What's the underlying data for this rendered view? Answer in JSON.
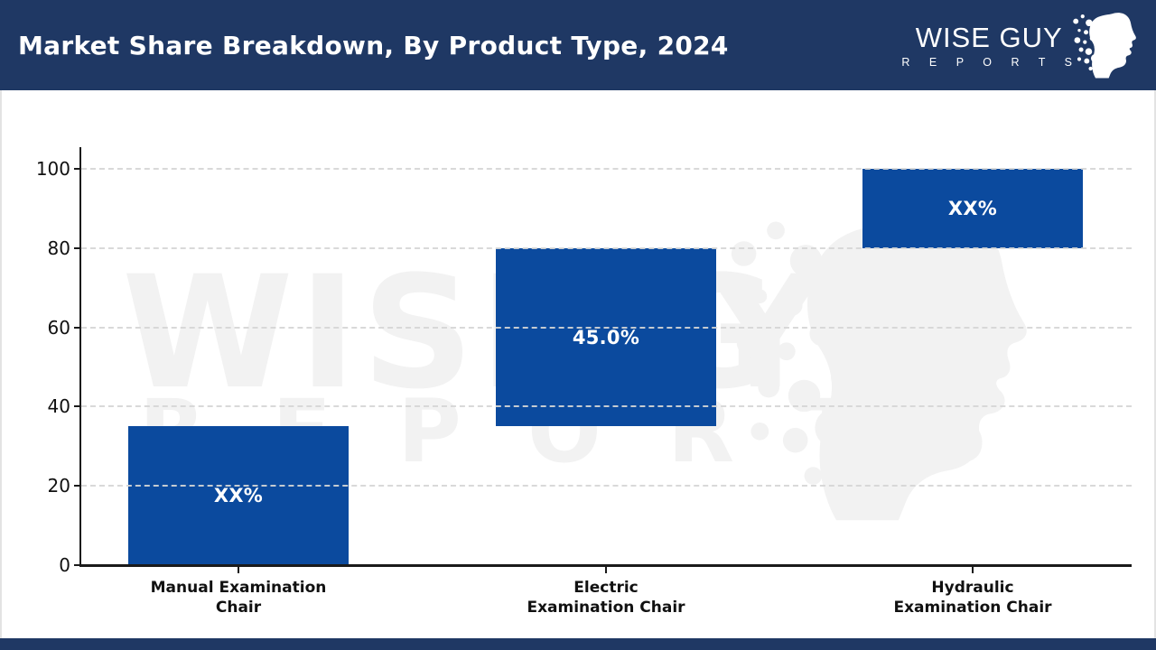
{
  "header": {
    "title": "Market Share Breakdown, By Product Type, 2024",
    "logo": {
      "line1": "WISE GUY",
      "line2": "R E P O R T S"
    }
  },
  "watermark": {
    "line1": "WISE G",
    "letter_y": "Y",
    "line2": "R E P O R T S"
  },
  "colors": {
    "header_bg": "#1f3864",
    "footer_bg": "#1f3864",
    "bar": "#0b4a9e",
    "axis": "#1a1a1a",
    "grid": "#d6d6d6",
    "watermark": "#f2f2f2",
    "bar_label_text": "#ffffff"
  },
  "chart_data": {
    "type": "bar",
    "subtype": "waterfall",
    "title": "Market Share Breakdown, By Product Type, 2024",
    "categories": [
      "Manual Examination Chair",
      "Electric Examination Chair",
      "Hydraulic Examination Chair"
    ],
    "category_lines": [
      [
        "Manual Examination",
        "Chair"
      ],
      [
        "Electric",
        "Examination Chair"
      ],
      [
        "Hydraulic",
        "Examination Chair"
      ]
    ],
    "segments": [
      {
        "category": "Manual Examination Chair",
        "start": 0,
        "end": 35,
        "label": "XX%"
      },
      {
        "category": "Electric Examination Chair",
        "start": 35,
        "end": 80,
        "label": "45.0%"
      },
      {
        "category": "Hydraulic Examination Chair",
        "start": 80,
        "end": 100,
        "label": "XX%"
      }
    ],
    "values": [
      35,
      45,
      20
    ],
    "yticks": [
      0,
      20,
      40,
      60,
      80,
      100
    ],
    "ylim": [
      0,
      100
    ],
    "xlabel": "",
    "ylabel": "",
    "grid": "horizontal-dashed",
    "legend": "none"
  }
}
